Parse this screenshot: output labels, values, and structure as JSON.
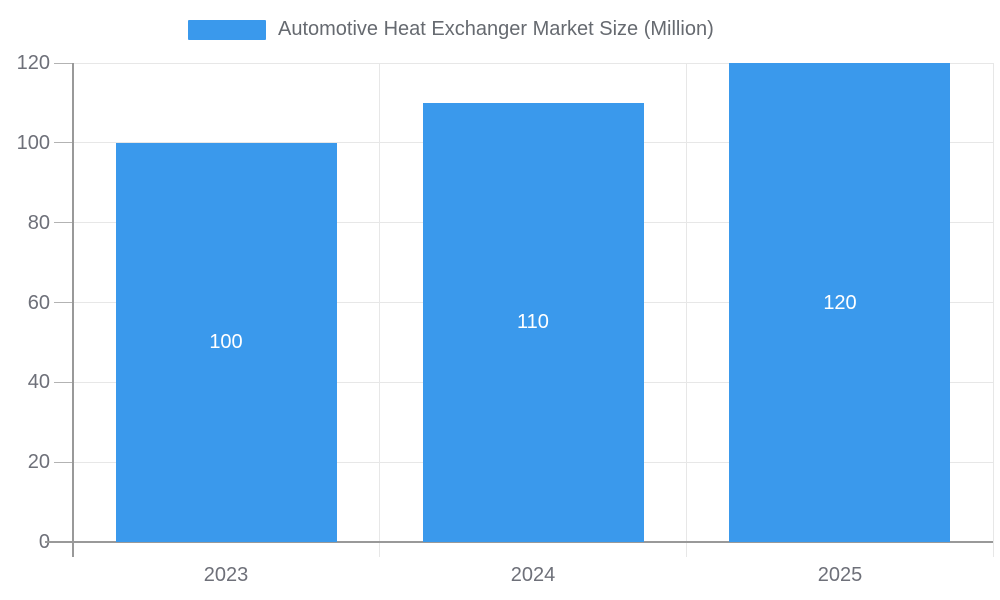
{
  "chart_data": {
    "type": "bar",
    "legend": "Automotive Heat Exchanger Market Size (Million)",
    "categories": [
      "2023",
      "2024",
      "2025"
    ],
    "series": [
      {
        "name": "Automotive Heat Exchanger Market Size (Million)",
        "values": [
          100,
          110,
          120
        ]
      }
    ],
    "bar_value_labels": [
      "100",
      "110",
      "120"
    ],
    "xlabel": "",
    "ylabel": "",
    "ylim": [
      0,
      120
    ],
    "yticks": [
      0,
      20,
      40,
      60,
      80,
      100,
      120
    ],
    "grid": true,
    "legend_position": "top-center",
    "colors": {
      "bar": "#3A99EC",
      "bar_label": "#ffffff",
      "axis_line": "#999999",
      "tick_line": "#b3b3b3",
      "grid_line": "#e7e7e7",
      "axis_text": "#6e7079",
      "legend_text": "#666a70"
    }
  }
}
